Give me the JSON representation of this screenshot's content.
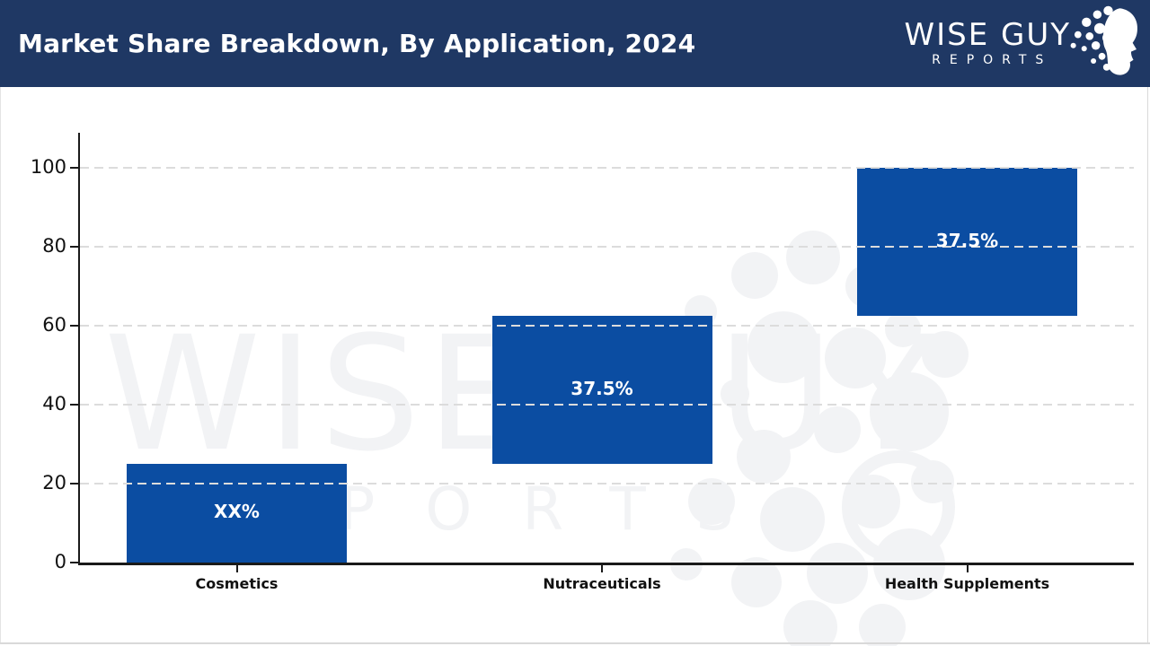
{
  "header": {
    "title": "Market Share Breakdown, By Application, 2024",
    "logo": {
      "line1": "WISE GUY",
      "line2": "REPORTS",
      "face_icon": "dotted-head-profile-icon"
    }
  },
  "watermark": {
    "line1": "WISE GUY",
    "line2": "REPORTS",
    "face_icon": "dotted-head-profile-watermark"
  },
  "colors": {
    "header_bg": "#1f3864",
    "bar_fill": "#0b4da2",
    "bar_label": "#ffffff",
    "gridline": "#dcdcdc",
    "axis": "#1a1a1a",
    "watermark": "#f2f3f5"
  },
  "chart_data": {
    "type": "bar",
    "subtype": "waterfall-floating-bars",
    "title": "Market Share Breakdown, By Application, 2024",
    "categories": [
      "Cosmetics",
      "Nutraceuticals",
      "Health Supplements"
    ],
    "segments": [
      {
        "category": "Cosmetics",
        "start": 0,
        "end": 25,
        "label": "XX%"
      },
      {
        "category": "Nutraceuticals",
        "start": 25,
        "end": 62.5,
        "label": "37.5%"
      },
      {
        "category": "Health Supplements",
        "start": 62.5,
        "end": 100,
        "label": "37.5%"
      }
    ],
    "xlabel": "",
    "ylabel": "",
    "ylim": [
      0,
      100
    ],
    "yticks": [
      0,
      20,
      40,
      60,
      80,
      100
    ],
    "grid": "horizontal dashed, drawn over bars",
    "legend": "none"
  }
}
